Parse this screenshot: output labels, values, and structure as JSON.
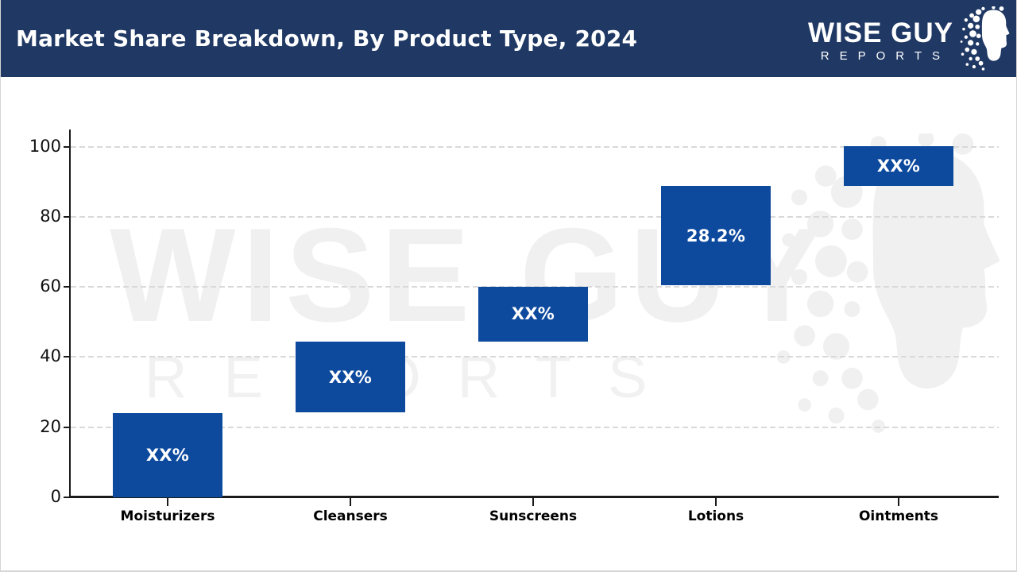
{
  "header": {
    "title": "Market Share Breakdown, By Product Type, 2024",
    "bg_color": "#1f3864",
    "logo": {
      "line1": "WISE GUY",
      "line2": "REPORTS"
    }
  },
  "watermark": {
    "line1": "WISE GUY",
    "line2": "REPORTS"
  },
  "chart_data": {
    "type": "bar",
    "subtype": "waterfall",
    "title": "Market Share Breakdown, By Product Type, 2024",
    "xlabel": "",
    "ylabel": "",
    "categories": [
      "Moisturizers",
      "Cleansers",
      "Sunscreens",
      "Lotions",
      "Ointments"
    ],
    "segments": [
      {
        "category": "Moisturizers",
        "start": 0,
        "end": 24.1,
        "value_shown": "XX%"
      },
      {
        "category": "Cleansers",
        "start": 24.3,
        "end": 44.3,
        "value_shown": "XX%"
      },
      {
        "category": "Sunscreens",
        "start": 44.5,
        "end": 60.1,
        "value_shown": "XX%"
      },
      {
        "category": "Lotions",
        "start": 60.5,
        "end": 88.7,
        "value_shown": "28.2%"
      },
      {
        "category": "Ointments",
        "start": 88.7,
        "end": 100.1,
        "value_shown": "XX%"
      }
    ],
    "increments": [
      24.1,
      20.0,
      15.6,
      28.2,
      11.4
    ],
    "yticks": [
      0,
      20,
      40,
      60,
      80,
      100
    ],
    "ylim": [
      0,
      105
    ],
    "grid": "horizontal-dashed",
    "legend": "none",
    "bar_color": "#0d4a9e",
    "bar_label_color": "#ffffff",
    "grid_color": "#d9d9d9",
    "axis_color": "#1a1a1a",
    "watermark_color": "#f0f0f0"
  }
}
